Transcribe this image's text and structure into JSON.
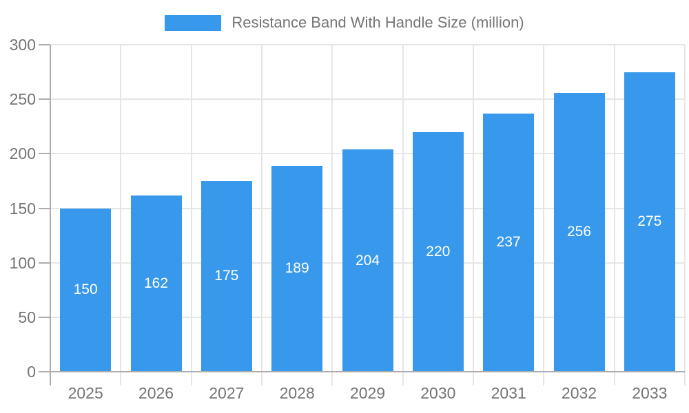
{
  "legend": {
    "label": "Resistance Band With Handle Size (million)"
  },
  "chart_data": {
    "type": "bar",
    "title": "Resistance Band With Handle Size (million)",
    "categories": [
      "2025",
      "2026",
      "2027",
      "2028",
      "2029",
      "2030",
      "2031",
      "2032",
      "2033"
    ],
    "series": [
      {
        "name": "Resistance Band With Handle Size (million)",
        "values": [
          150,
          162,
          175,
          189,
          204,
          220,
          237,
          256,
          275
        ]
      }
    ],
    "xlabel": "",
    "ylabel": "",
    "ylim": [
      0,
      300
    ],
    "yticks": [
      0,
      50,
      100,
      150,
      200,
      250,
      300
    ],
    "grid": true,
    "legend_position": "top",
    "value_labels": "inside-center"
  },
  "colors": {
    "bar": "#3899EC",
    "grid": "#E6E6E6",
    "axis": "#ADADAD",
    "tick_text": "#757575",
    "legend_text": "#757575",
    "value_label": "#FFFFFF",
    "background": "#FFFFFF"
  }
}
